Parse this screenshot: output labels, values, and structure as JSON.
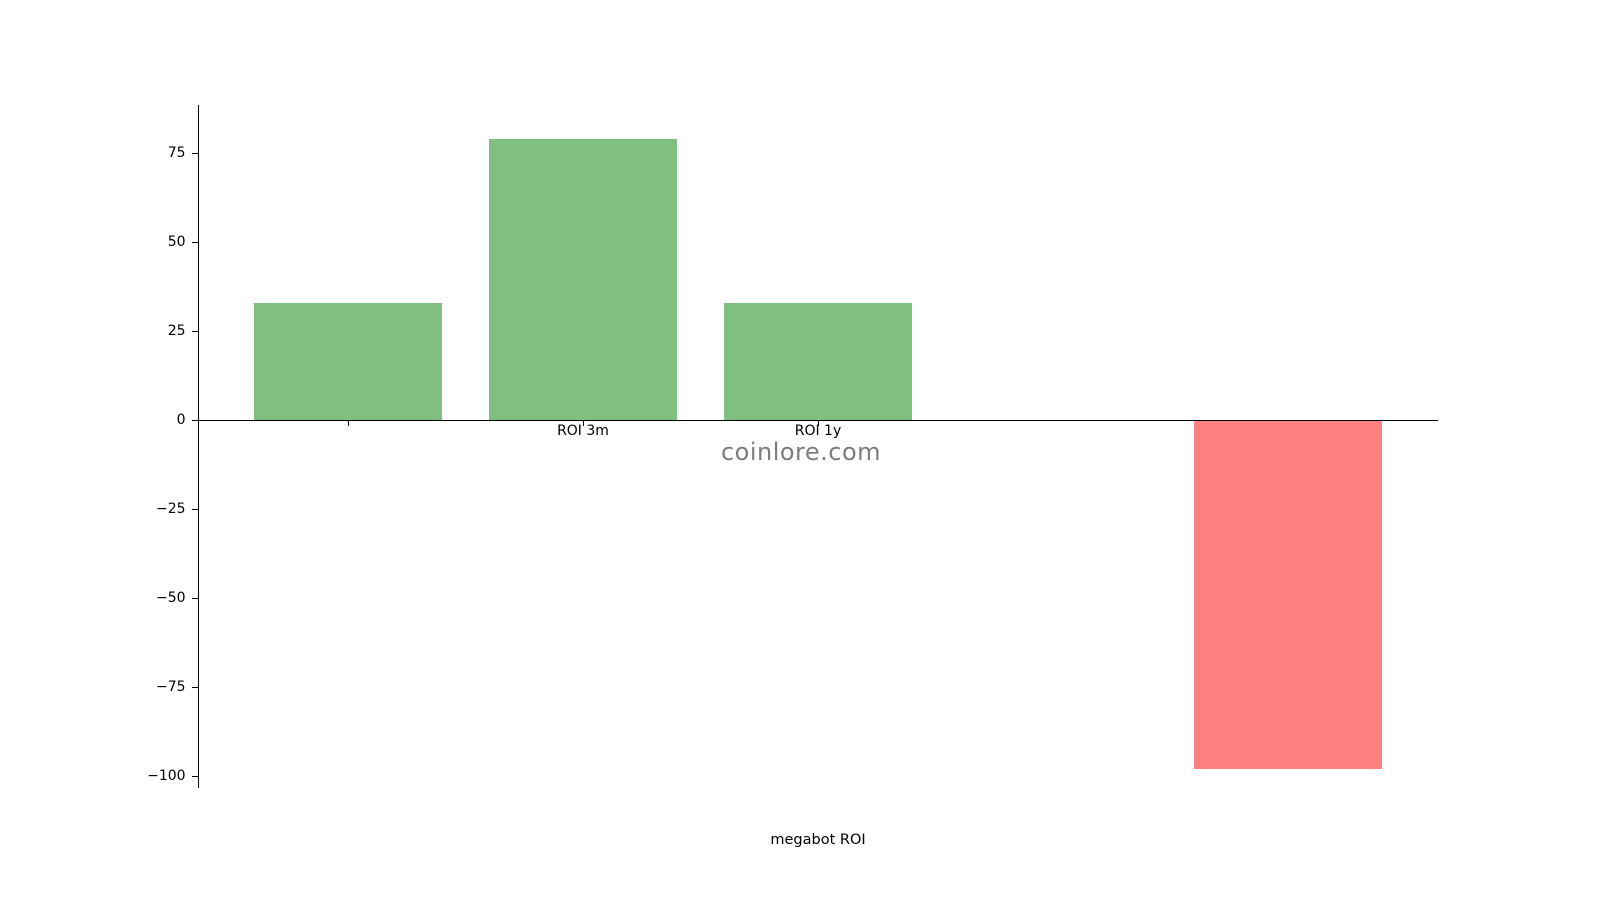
{
  "chart_data": {
    "type": "bar",
    "title": "",
    "xlabel": "megabot ROI",
    "ylabel": "",
    "watermark": "coinlore.com",
    "x": [
      0,
      1,
      2,
      4
    ],
    "categories": [
      "",
      "ROI 3m",
      "ROI 1y",
      ""
    ],
    "values": [
      33,
      79,
      33,
      -98
    ],
    "bar_colors": [
      "#7fbf7f",
      "#7fbf7f",
      "#7fbf7f",
      "#ff8080"
    ],
    "bar_width": 0.8,
    "yticks": [
      75,
      50,
      25,
      0,
      -25,
      -50,
      -75,
      -100
    ],
    "ytick_labels": [
      "75",
      "50",
      "25",
      "0",
      "−25",
      "−50",
      "−75",
      "−100"
    ],
    "ylim": [
      -103.5,
      88.5
    ],
    "xlim": [
      -0.64,
      4.64
    ],
    "grid": false,
    "legend_position": "none",
    "colors": {
      "positive": "#7fbf7f",
      "negative": "#ff8080",
      "axis": "#000000",
      "tick_label": "#000000",
      "watermark": "#7d7d7d"
    }
  }
}
